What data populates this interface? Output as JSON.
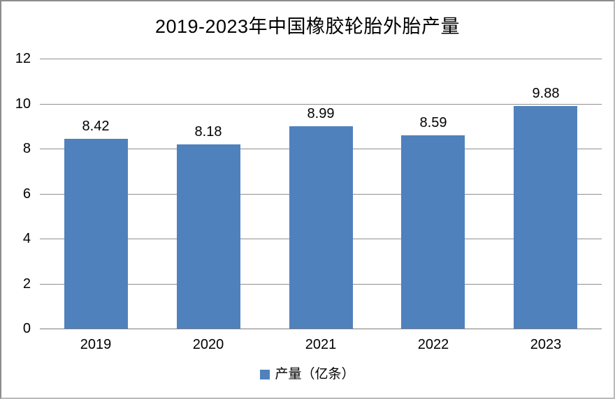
{
  "chart_data": {
    "type": "bar",
    "title": "2019-2023年中国橡胶轮胎外胎产量",
    "categories": [
      "2019",
      "2020",
      "2021",
      "2022",
      "2023"
    ],
    "series": [
      {
        "name": "产量（亿条）",
        "values": [
          8.42,
          8.18,
          8.99,
          8.59,
          9.88
        ],
        "value_labels": [
          "8.42",
          "8.18",
          "8.99",
          "8.59",
          "9.88"
        ]
      }
    ],
    "legend": {
      "label": "产量（亿条）",
      "position": "bottom"
    },
    "xlabel": "",
    "ylabel": "",
    "ylim": [
      0,
      12
    ],
    "yticks": [
      0,
      2,
      4,
      6,
      8,
      10,
      12
    ],
    "grid": true,
    "colors": {
      "bar": "#4f81bd",
      "gridline": "#8f8f8f",
      "axis_line": "#7d7d7d",
      "text": "#000000",
      "background": "#ffffff",
      "frame_border": "#9b9b9b"
    }
  }
}
